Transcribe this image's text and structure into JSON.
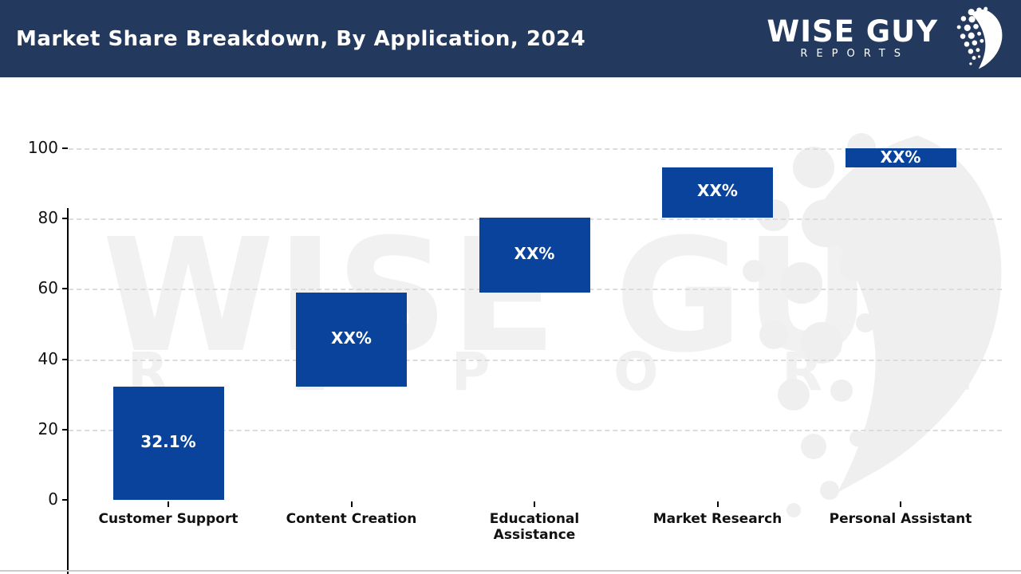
{
  "header": {
    "title": "Market Share Breakdown, By Application, 2024",
    "logo_line1": "WISE GUY",
    "logo_line2": "REPORTS"
  },
  "watermark": {
    "line1": "WISE GUY",
    "line2": "REPORTS"
  },
  "colors": {
    "header_bg": "#23395e",
    "bar": "#09439b",
    "grid": "#dcdcdc",
    "axis": "#000000",
    "bar_label_text": "#ffffff",
    "watermark": "#f1f1f1",
    "bottom_rule": "#cccccc"
  },
  "chart_data": {
    "type": "bar",
    "subtype": "waterfall-stacked",
    "title": "Market Share Breakdown, By Application, 2024",
    "categories": [
      "Customer Support",
      "Content Creation",
      "Educational Assistance",
      "Market Research",
      "Personal Assistant"
    ],
    "segments": [
      {
        "category": "Customer Support",
        "label": "32.1%",
        "start": 0,
        "end": 32.1
      },
      {
        "category": "Content Creation",
        "label": "XX%",
        "start": 32.1,
        "end": 59.0
      },
      {
        "category": "Educational Assistance",
        "label": "XX%",
        "start": 59.0,
        "end": 80.3
      },
      {
        "category": "Market Research",
        "label": "XX%",
        "start": 80.3,
        "end": 94.6
      },
      {
        "category": "Personal Assistant",
        "label": "XX%",
        "start": 94.6,
        "end": 100.0
      }
    ],
    "xlabel": "",
    "ylabel": "",
    "ylim": [
      0,
      105
    ],
    "yticks": [
      0,
      20,
      40,
      60,
      80,
      100
    ],
    "grid": "dashed-horizontal",
    "legend": "none"
  }
}
